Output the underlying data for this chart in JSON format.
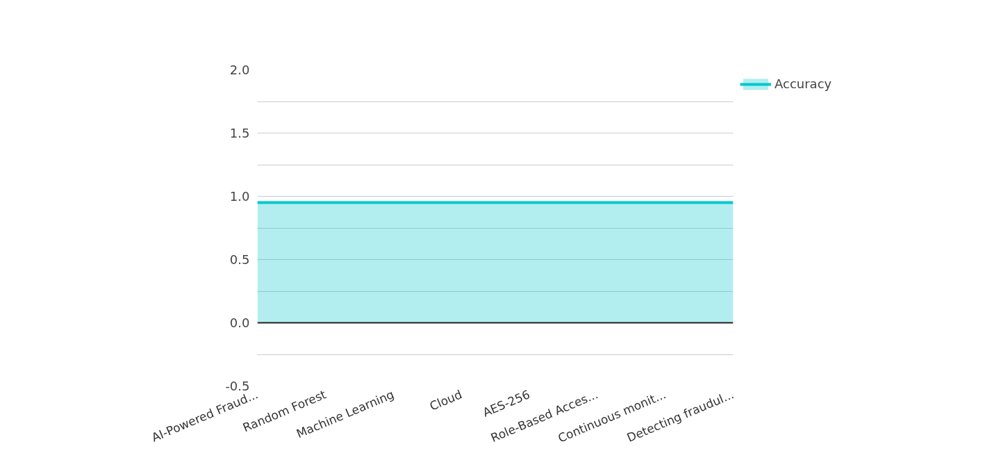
{
  "chart_data": {
    "type": "area",
    "categories": [
      "AI-Powered Fraud...",
      "Random Forest",
      "Machine Learning",
      "Cloud",
      "AES-256",
      "Role-Based Acces...",
      "Continuous monit...",
      "Detecting fraudul..."
    ],
    "series": [
      {
        "name": "Accuracy",
        "color": "#00c8cc",
        "values": [
          0.95,
          0.95,
          0.95,
          0.95,
          0.95,
          0.95,
          0.95,
          0.95
        ]
      }
    ],
    "ylim": [
      -0.5,
      2.0
    ],
    "yticks": [
      -0.5,
      {
        "value": -0.25,
        "label": null
      },
      {
        "value": 0,
        "label": "0.0"
      },
      {
        "value": 0.25,
        "label": null
      },
      0.5,
      {
        "value": 0.75,
        "label": null
      },
      {
        "value": 1,
        "label": "1.0"
      },
      {
        "value": 1.25,
        "label": null
      },
      1.5,
      {
        "value": 1.75,
        "label": null
      },
      {
        "value": 2,
        "label": "2.0"
      }
    ],
    "ref_lines": [
      {
        "axis": "y",
        "value": 0,
        "color": "#222222"
      }
    ],
    "grid": "y",
    "legend": "top right"
  }
}
